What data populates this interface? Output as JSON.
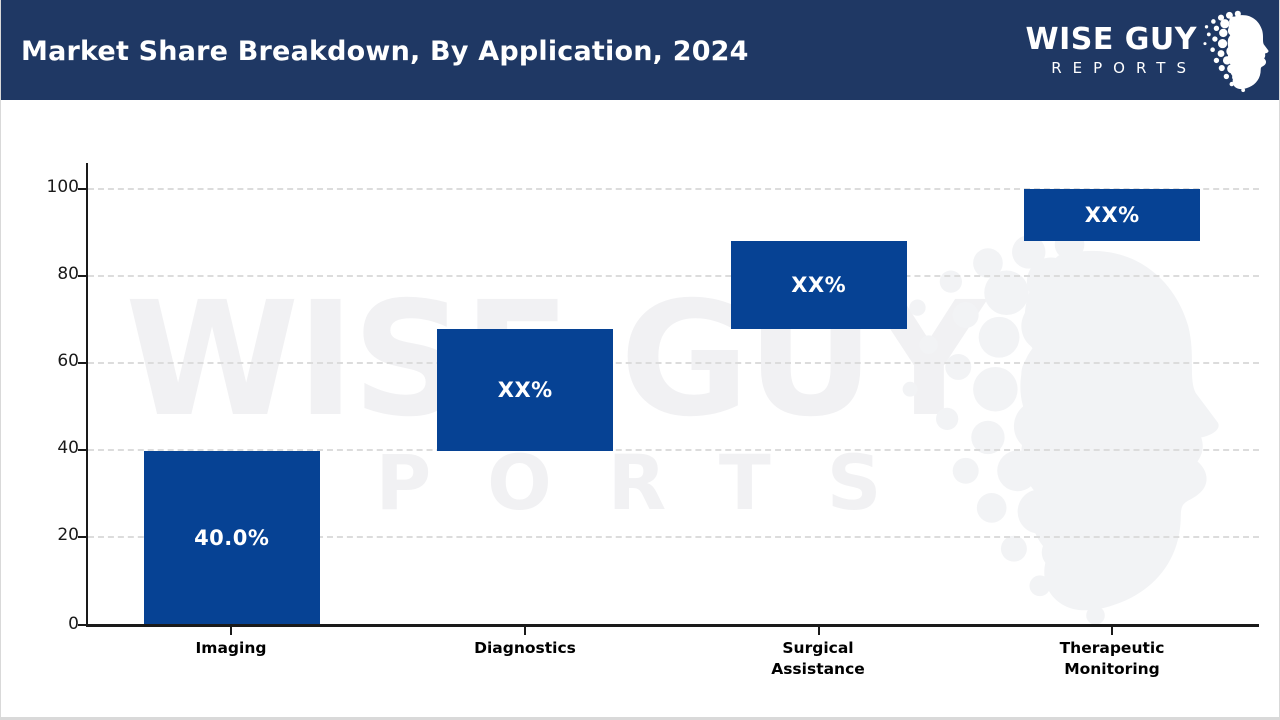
{
  "header": {
    "title": "Market Share Breakdown, By Application, 2024"
  },
  "brand": {
    "name": "WISE GUY",
    "subtitle": "REPORTS"
  },
  "watermark": {
    "line1": "WISE GUY",
    "line2": "REPORTS"
  },
  "chart_data": {
    "type": "bar",
    "subtype": "waterfall",
    "title": "Market Share Breakdown, By Application, 2024",
    "categories": [
      "Imaging",
      "Diagnostics",
      "Surgical\nAssistance",
      "Therapeutic\nMonitoring"
    ],
    "segment_values_pct": [
      40,
      28,
      20,
      12
    ],
    "starts": [
      0,
      40,
      68,
      88
    ],
    "ends": [
      40,
      68,
      88,
      100
    ],
    "bar_labels": [
      "40.0%",
      "XX%",
      "XX%",
      "XX%"
    ],
    "xlabel": "",
    "ylabel": "",
    "ylim": [
      0,
      100
    ],
    "yticks": [
      0,
      20,
      40,
      60,
      80,
      100
    ],
    "ytick_labels": [
      "0",
      "20",
      "40",
      "60",
      "80",
      "100"
    ],
    "grid": "horizontal-dashed",
    "legend": "none",
    "colors": {
      "bar": "#064294",
      "header_background": "#1f3864",
      "watermark": "#f1f1f3",
      "gridline": "#dcdcdc",
      "axis": "#1a1a1a"
    }
  }
}
